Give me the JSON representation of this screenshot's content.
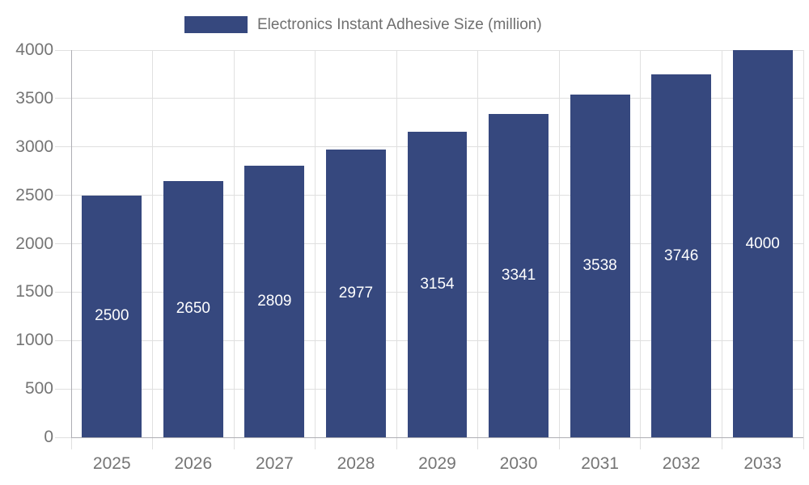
{
  "legend": {
    "label": "Electronics Instant Adhesive Size (million)"
  },
  "colors": {
    "bar": "#36487e",
    "grid": "#e0e0e0",
    "axis": "#aeaeb4",
    "axis_text": "#757575",
    "legend_text": "#6f6f6f",
    "value_label": "#ffffff",
    "background": "#ffffff"
  },
  "chart_data": {
    "type": "bar",
    "title": "Electronics Instant Adhesive Size (million)",
    "categories": [
      "2025",
      "2026",
      "2027",
      "2028",
      "2029",
      "2030",
      "2031",
      "2032",
      "2033"
    ],
    "series": [
      {
        "name": "Electronics Instant Adhesive Size (million)",
        "values": [
          2500,
          2650,
          2809,
          2977,
          3154,
          3341,
          3538,
          3746,
          4000
        ]
      }
    ],
    "value_labels_shown": true,
    "xlabel": "",
    "ylabel": "",
    "ylim": [
      0,
      4000
    ],
    "ytick_step": 500,
    "ytick_labels": [
      "0",
      "500",
      "1000",
      "1500",
      "2000",
      "2500",
      "3000",
      "3500",
      "4000"
    ],
    "grid": true,
    "legend_position": "top"
  }
}
